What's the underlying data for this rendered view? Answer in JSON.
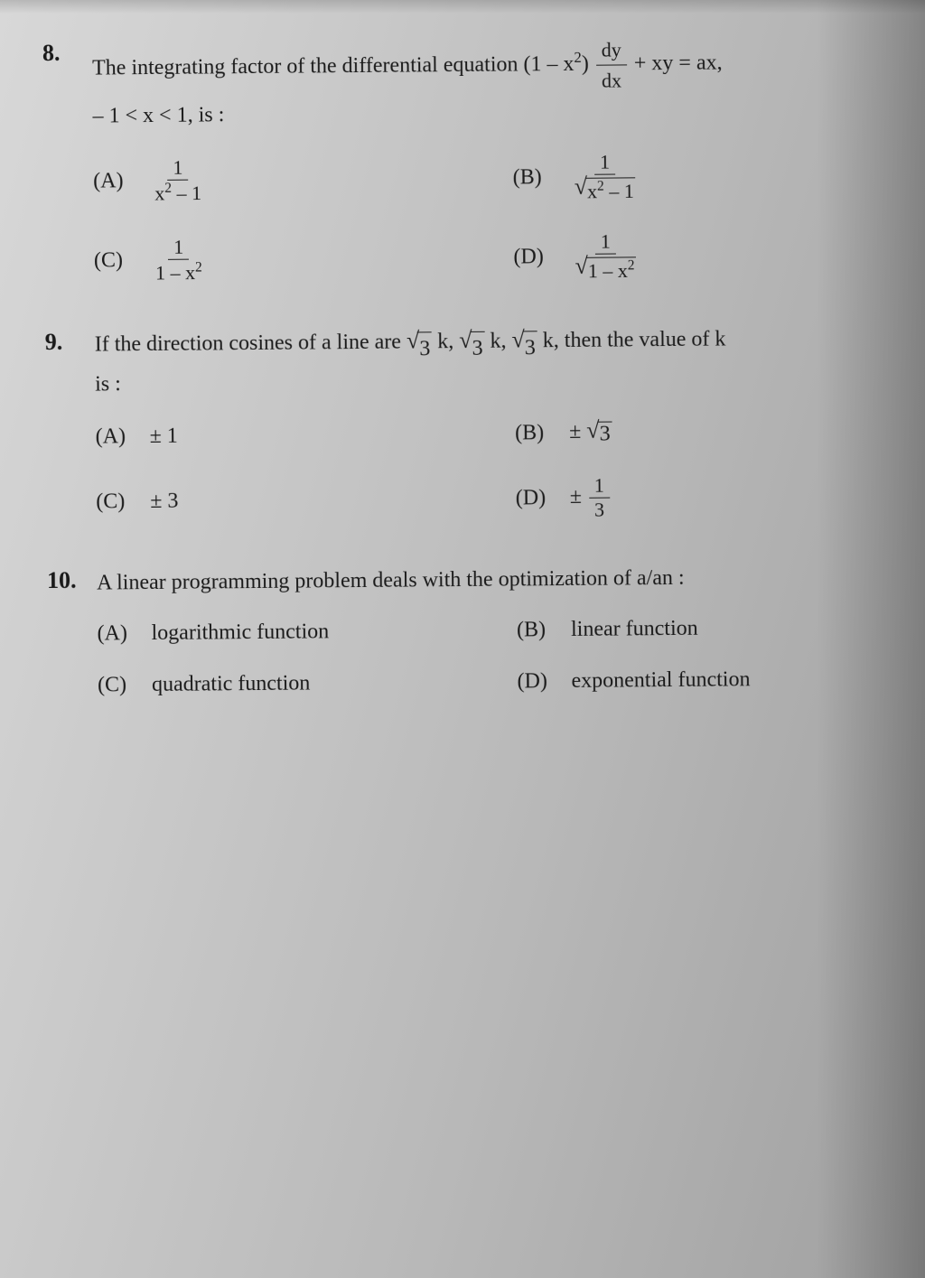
{
  "questions": {
    "q8": {
      "number": "8.",
      "text_part1": "The integrating factor of the differential equation (1 – x",
      "text_sup1": "2",
      "text_part2": ") ",
      "text_frac_num": "dy",
      "text_frac_den": "dx",
      "text_part3": " + xy = ax,",
      "text_line2": "– 1 < x < 1, is :",
      "options": {
        "a": {
          "label": "(A)",
          "frac_num": "1",
          "frac_den_pre": "x",
          "frac_den_sup": "2",
          "frac_den_post": " – 1"
        },
        "b": {
          "label": "(B)",
          "frac_num": "1",
          "sqrt_pre": "x",
          "sqrt_sup": "2",
          "sqrt_post": " – 1"
        },
        "c": {
          "label": "(C)",
          "frac_num": "1",
          "frac_den_pre": "1 – x",
          "frac_den_sup": "2",
          "frac_den_post": ""
        },
        "d": {
          "label": "(D)",
          "frac_num": "1",
          "sqrt_pre": "1 – x",
          "sqrt_sup": "2",
          "sqrt_post": ""
        }
      }
    },
    "q9": {
      "number": "9.",
      "text_part1": "If the direction cosines of a line are ",
      "sqrt3_1": "3",
      "text_k1": " k, ",
      "sqrt3_2": "3",
      "text_k2": " k, ",
      "sqrt3_3": "3",
      "text_k3": " k, then the value of k",
      "text_line2": "is :",
      "options": {
        "a": {
          "label": "(A)",
          "value": "± 1"
        },
        "b": {
          "label": "(B)",
          "value_pre": "± ",
          "sqrt_val": "3"
        },
        "c": {
          "label": "(C)",
          "value": "± 3"
        },
        "d": {
          "label": "(D)",
          "value_pre": "± ",
          "frac_num": "1",
          "frac_den": "3"
        }
      }
    },
    "q10": {
      "number": "10.",
      "text": "A linear programming problem deals with the optimization of a/an :",
      "options": {
        "a": {
          "label": "(A)",
          "value": "logarithmic function"
        },
        "b": {
          "label": "(B)",
          "value": "linear function"
        },
        "c": {
          "label": "(C)",
          "value": "quadratic function"
        },
        "d": {
          "label": "(D)",
          "value": "exponential function"
        }
      }
    }
  }
}
